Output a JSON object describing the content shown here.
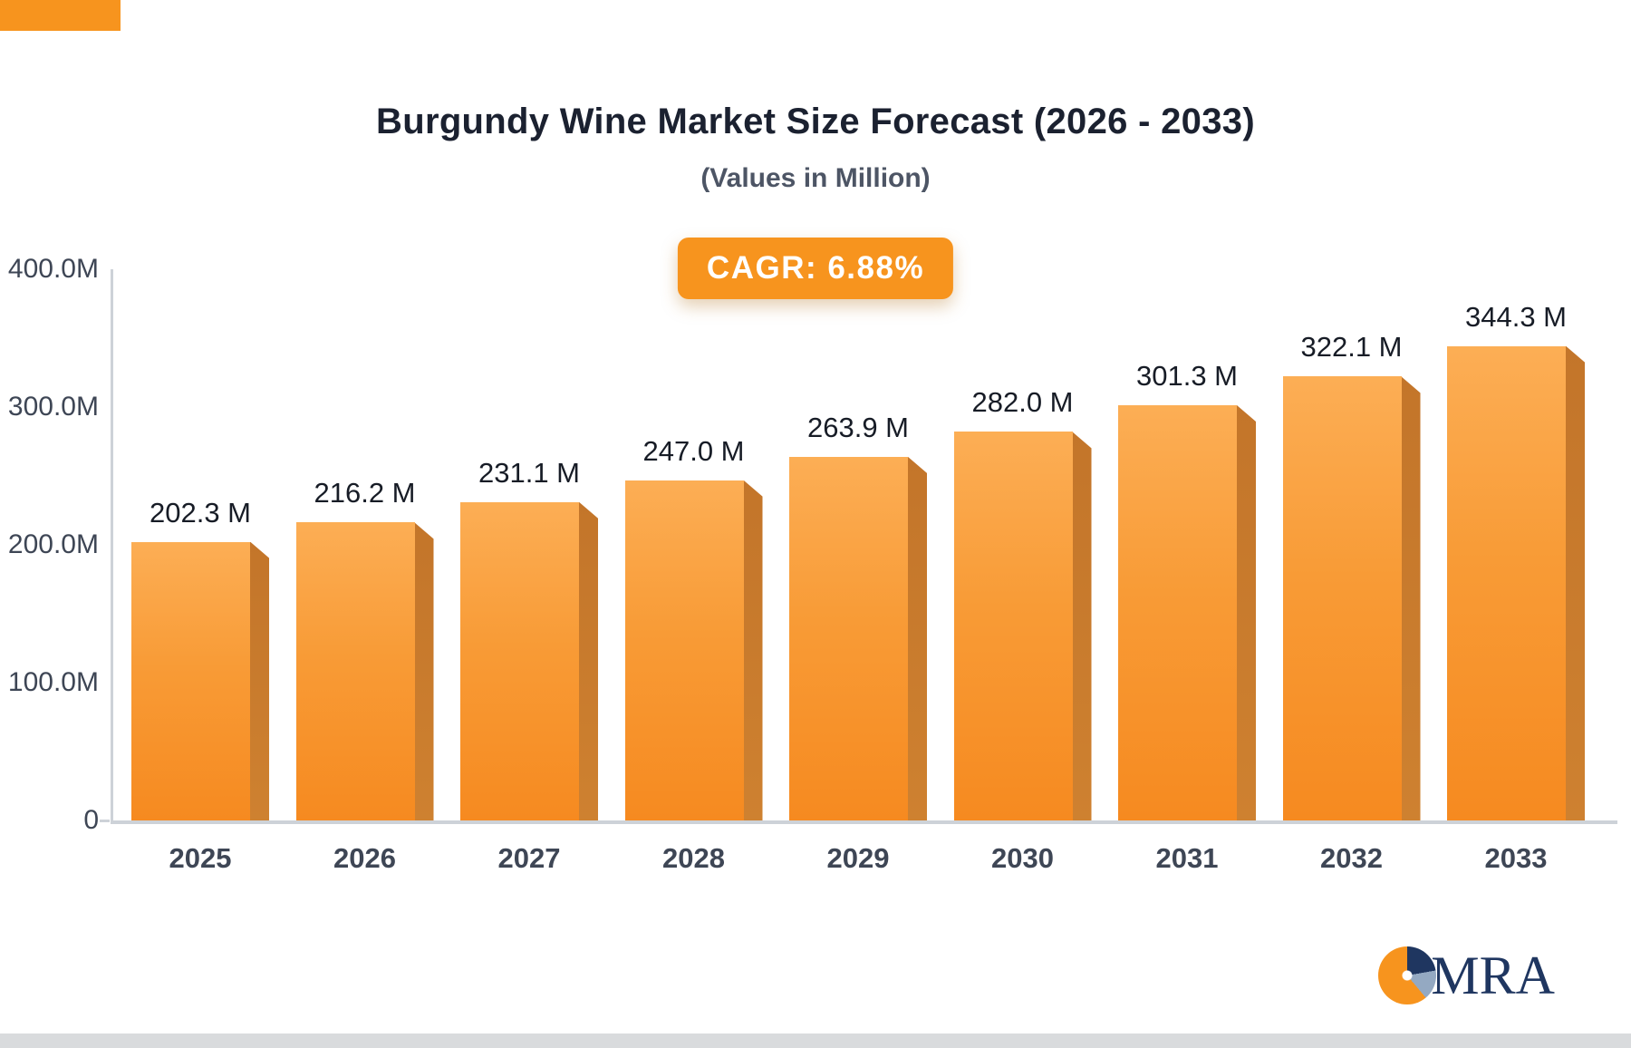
{
  "badge": {
    "text": "CAGR: 6.88%"
  },
  "logo": {
    "text": "MRA"
  },
  "colors": {
    "accent_orange": "#F7941E",
    "title_color": "#1B2130",
    "subtitle_color": "#4D5565",
    "axis_label": "#3E4655",
    "axis_line": "#CDD2D8",
    "footer_bar": "#D9DBDD",
    "bar_top": "#FCAE55",
    "bar_mid": "#F89B36",
    "bar_bottom": "#F68A20",
    "bar_side_top": "#C3752A",
    "bar_side_bottom": "#CE8130",
    "logo_navy": "#1F3660",
    "logo_blue": "#94A9C2"
  },
  "chart_data": {
    "type": "bar",
    "title": "Burgundy Wine Market Size Forecast (2026 - 2033)",
    "subtitle": "(Values in Million)",
    "cagr_label": "CAGR: 6.88%",
    "categories": [
      "2025",
      "2026",
      "2027",
      "2028",
      "2029",
      "2030",
      "2031",
      "2032",
      "2033"
    ],
    "values": [
      202.3,
      216.2,
      231.1,
      247.0,
      263.9,
      282.0,
      301.3,
      322.1,
      344.3
    ],
    "value_labels": [
      "202.3 M",
      "216.2 M",
      "231.1 M",
      "247.0 M",
      "263.9 M",
      "282.0 M",
      "301.3 M",
      "322.1 M",
      "344.3 M"
    ],
    "unit": "Million",
    "ylim": [
      0,
      400
    ],
    "yticks": [
      {
        "value": 0,
        "label": "0"
      },
      {
        "value": 100,
        "label": "100.0M"
      },
      {
        "value": 200,
        "label": "200.0M"
      },
      {
        "value": 300,
        "label": "300.0M"
      },
      {
        "value": 400,
        "label": "400.0M"
      }
    ],
    "grid": false,
    "legend": "none"
  }
}
